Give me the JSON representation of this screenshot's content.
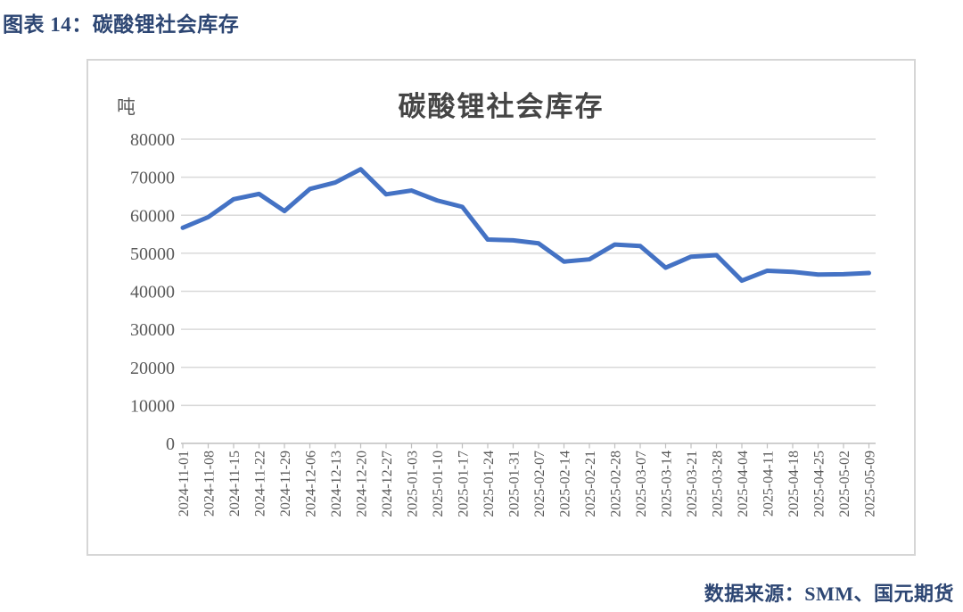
{
  "page": {
    "header": "图表 14：碳酸锂社会库存",
    "footer": "数据来源：SMM、国元期货"
  },
  "chart_data": {
    "type": "line",
    "title": "碳酸锂社会库存",
    "unit_label": "吨",
    "series_name": "碳酸锂社会库存",
    "legend_position": "none",
    "grid": true,
    "ylim": [
      0,
      80000
    ],
    "ytick_interval": 10000,
    "ytick_labels": [
      "0",
      "10000",
      "20000",
      "30000",
      "40000",
      "50000",
      "60000",
      "70000",
      "80000"
    ],
    "categories": [
      "2024-11-01",
      "2024-11-08",
      "2024-11-15",
      "2024-11-22",
      "2024-11-29",
      "2024-12-06",
      "2024-12-13",
      "2024-12-20",
      "2024-12-27",
      "2025-01-03",
      "2025-01-10",
      "2025-01-17",
      "2025-01-24",
      "2025-01-31",
      "2025-02-07",
      "2025-02-14",
      "2025-02-21",
      "2025-02-28",
      "2025-03-07",
      "2025-03-14",
      "2025-03-21",
      "2025-03-28",
      "2025-04-04",
      "2025-04-11",
      "2025-04-18",
      "2025-04-25",
      "2025-05-02",
      "2025-05-09"
    ],
    "values": [
      56700,
      59500,
      64200,
      65600,
      61100,
      66900,
      68600,
      72100,
      65500,
      66500,
      63900,
      62200,
      53600,
      53400,
      52600,
      47800,
      48400,
      52300,
      51900,
      46200,
      49100,
      49500,
      42800,
      45400,
      45100,
      44400,
      44500,
      44800
    ],
    "colors": {
      "line": "#4472C4",
      "gridline": "#D9D9D9",
      "axis": "#BFBFBF",
      "axis_text": "#595959",
      "title_text": "#454545",
      "caption_text": "#2D4673",
      "chart_border": "#D6D6D6"
    }
  }
}
